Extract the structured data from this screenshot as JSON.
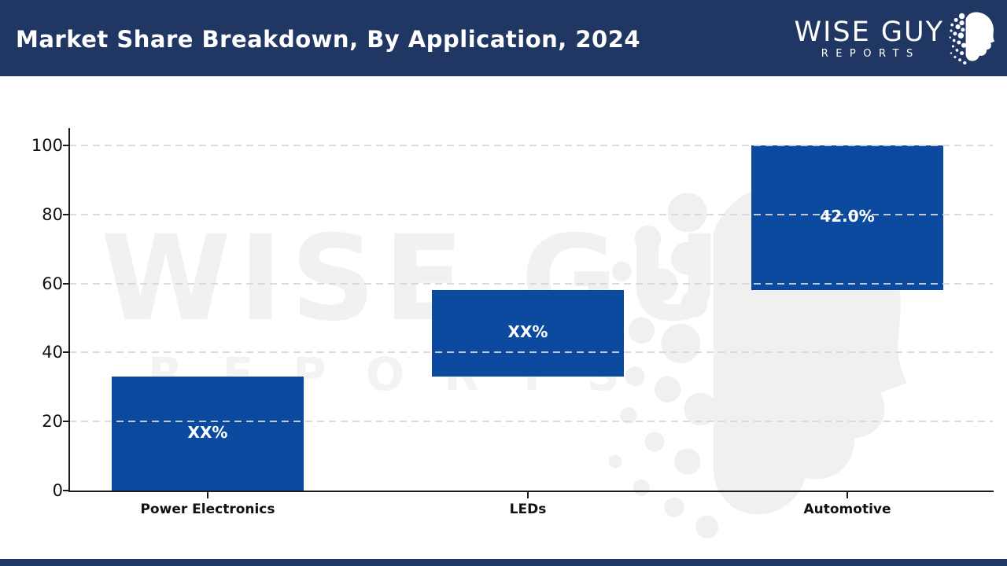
{
  "header": {
    "title": "Market Share Breakdown, By Application, 2024",
    "logo": {
      "line1": "WISE GUY",
      "line2": "REPORTS"
    }
  },
  "watermark": {
    "line1": "WISE GUY",
    "line2": "REPORTS"
  },
  "colors": {
    "header_bg": "#213763",
    "bar_color": "#0b4a9e",
    "bar_label_color": "#ffffff",
    "gridline_color": "#d7d7d7"
  },
  "chart_data": {
    "type": "bar",
    "subtype": "waterfall",
    "title": "Market Share Breakdown, By Application, 2024",
    "xlabel": "",
    "ylabel": "",
    "categories": [
      "Power Electronics",
      "LEDs",
      "Automotive"
    ],
    "segments": [
      {
        "category": "Power Electronics",
        "start": 0,
        "end": 33,
        "value": 33,
        "label": "XX%"
      },
      {
        "category": "LEDs",
        "start": 33,
        "end": 58,
        "value": 25,
        "label": "XX%"
      },
      {
        "category": "Automotive",
        "start": 58,
        "end": 100,
        "value": 42,
        "label": "42.0%"
      }
    ],
    "yticks": [
      0,
      20,
      40,
      60,
      80,
      100
    ],
    "ylim": [
      0,
      105
    ],
    "grid": true,
    "grid_style": "dashed",
    "legend": false
  }
}
